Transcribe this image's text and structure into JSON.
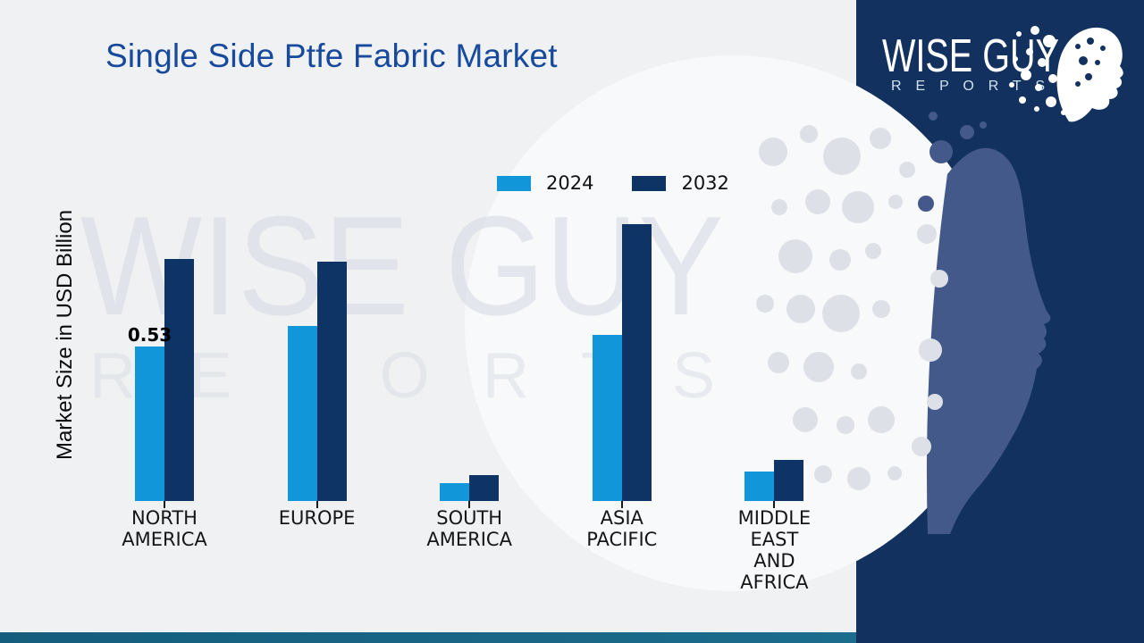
{
  "page": {
    "background": "#eff1f3",
    "circle_color": "#f7f9fb",
    "panel_navy": "#12315e",
    "face_slate": "#42598a",
    "watermark_gray": "#d8dce3",
    "footer_bar_left": "#155d7c",
    "footer_bar_right": "#1e7193",
    "title_color": "#17499c"
  },
  "header": {
    "title": "Single Side Ptfe Fabric Market"
  },
  "brand_logo": {
    "name": "WISE GUY",
    "sub": "R E P O R T S"
  },
  "watermark": {
    "name": "WISE GUY",
    "sub": "R E P O R T S"
  },
  "chart_data": {
    "type": "bar",
    "title": "Single Side Ptfe Fabric Market",
    "xlabel": "",
    "ylabel": "Market Size in USD Billion",
    "categories": [
      "NORTH\nAMERICA",
      "EUROPE",
      "SOUTH\nAMERICA",
      "ASIA\nPACIFIC",
      "MIDDLE\nEAST\nAND\nAFRICA"
    ],
    "series": [
      {
        "name": "2024",
        "color": "#1196da",
        "values": [
          0.53,
          0.6,
          0.06,
          0.57,
          0.1
        ]
      },
      {
        "name": "2032",
        "color": "#0e3365",
        "values": [
          0.83,
          0.82,
          0.09,
          0.95,
          0.14
        ]
      }
    ],
    "annotations": [
      {
        "series": "2024",
        "category": "NORTH\nAMERICA",
        "index": 0,
        "text": "0.53"
      }
    ],
    "ylim": [
      0,
      1.0
    ],
    "grid": false,
    "legend_position": "top-center",
    "axis_line": false
  }
}
